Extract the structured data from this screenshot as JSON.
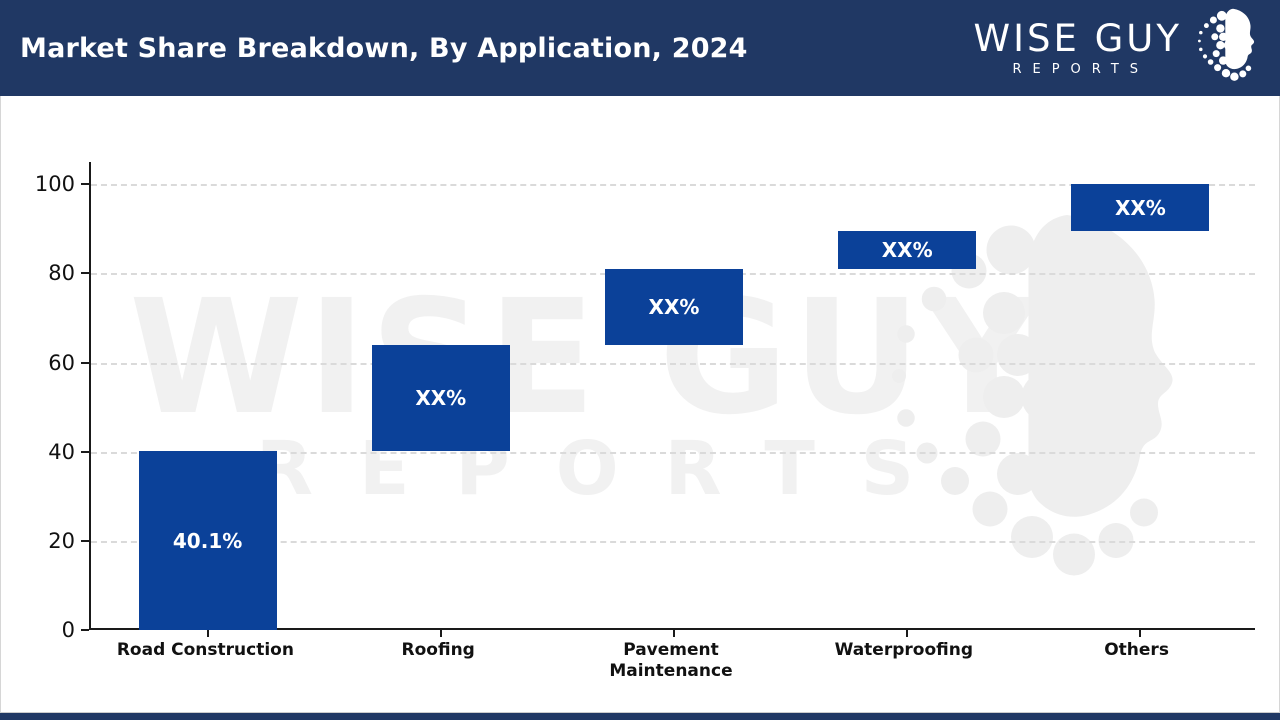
{
  "header": {
    "title": "Market Share Breakdown, By Application, 2024",
    "logo": {
      "primary": "WISE GUY",
      "secondary": "REPORTS"
    }
  },
  "watermark": {
    "primary": "WISE GUY",
    "secondary": "REPORTS"
  },
  "colors": {
    "header_bg": "#203864",
    "footer_bg": "#203864",
    "bar": "#0b4199",
    "bar_label": "#ffffff",
    "grid": "#dadada",
    "axis": "#1a1a1a",
    "watermark": "#f1f1f1"
  },
  "chart_data": {
    "type": "bar",
    "subtype": "waterfall (floating cumulative segments)",
    "title": "Market Share Breakdown, By Application, 2024",
    "xlabel": "",
    "ylabel": "",
    "categories": [
      "Road Construction",
      "Roofing",
      "Pavement Maintenance",
      "Waterproofing",
      "Others"
    ],
    "segments": [
      {
        "category": "Road Construction",
        "start": 0,
        "end": 40.1,
        "value": 40.1,
        "label": "40.1%"
      },
      {
        "category": "Roofing",
        "start": 40.1,
        "end": 64,
        "value": 23.9,
        "label": "XX%"
      },
      {
        "category": "Pavement Maintenance",
        "start": 64,
        "end": 81,
        "value": 17,
        "label": "XX%"
      },
      {
        "category": "Waterproofing",
        "start": 81,
        "end": 89.5,
        "value": 8.5,
        "label": "XX%"
      },
      {
        "category": "Others",
        "start": 89.5,
        "end": 100,
        "value": 10.5,
        "label": "XX%"
      }
    ],
    "yticks": [
      0,
      20,
      40,
      60,
      80,
      100
    ],
    "ylim": [
      0,
      105
    ],
    "grid": {
      "horizontal": true,
      "style": "dashed"
    },
    "legend": "none"
  }
}
